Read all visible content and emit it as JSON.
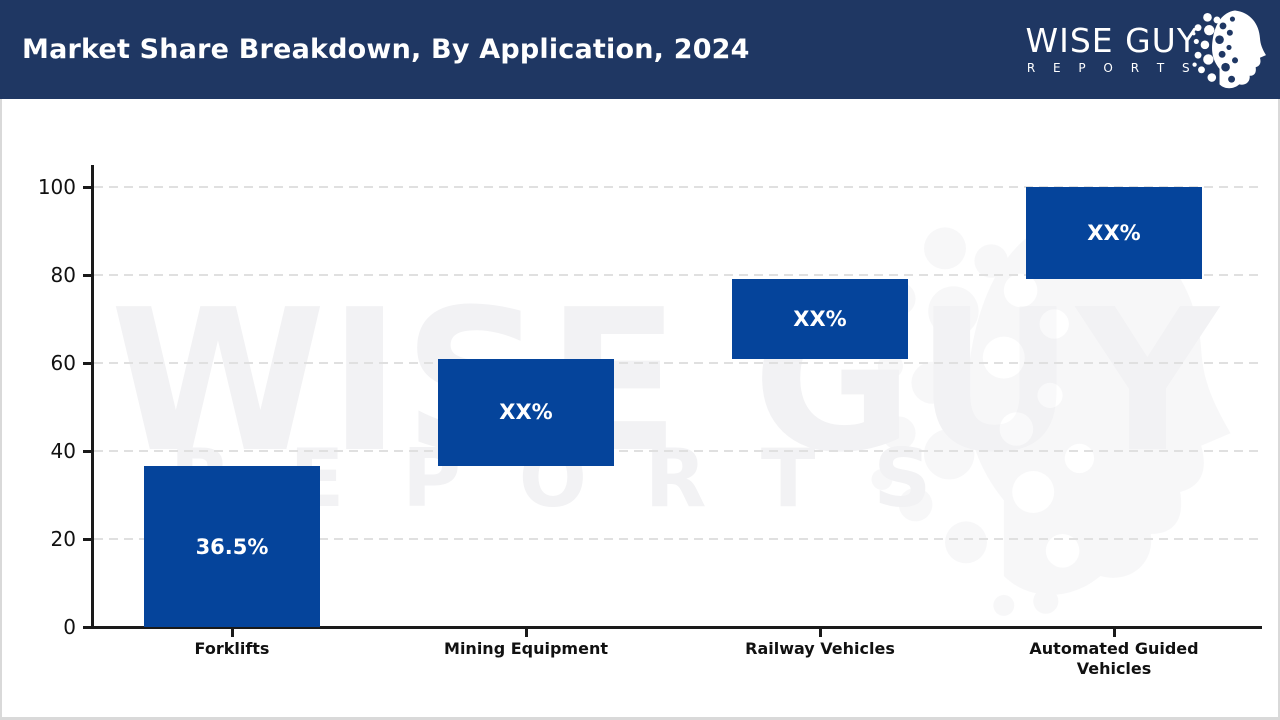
{
  "header": {
    "title": "Market Share Breakdown, By Application, 2024",
    "logo": {
      "line1": "WISE GUY",
      "line2": "REPORTS"
    }
  },
  "watermark": {
    "line1": "WISE GUY",
    "line2": "REPORTS"
  },
  "chart_data": {
    "type": "bar",
    "subtype": "waterfall",
    "title": "Market Share Breakdown, By Application, 2024",
    "categories": [
      "Forklifts",
      "Mining Equipment",
      "Railway Vehicles",
      "Automated Guided Vehicles"
    ],
    "series": [
      {
        "name": "Market share (%)",
        "starts": [
          0,
          36.5,
          61,
          79
        ],
        "ends": [
          36.5,
          61,
          79,
          100
        ]
      }
    ],
    "bar_labels": [
      "36.5%",
      "XX%",
      "XX%",
      "XX%"
    ],
    "ylim": [
      0,
      100
    ],
    "yticks": [
      0,
      20,
      40,
      60,
      80,
      100
    ],
    "xlabel": "",
    "ylabel": "",
    "grid": "horizontal-dashed",
    "legend": "none",
    "colors": {
      "bar": "#05449b",
      "bar_label": "#ffffff",
      "header_bg": "#1f3763",
      "axis": "#1a1a1a",
      "gridline": "#e0e0e0",
      "watermark": "#f2f2f4"
    }
  }
}
